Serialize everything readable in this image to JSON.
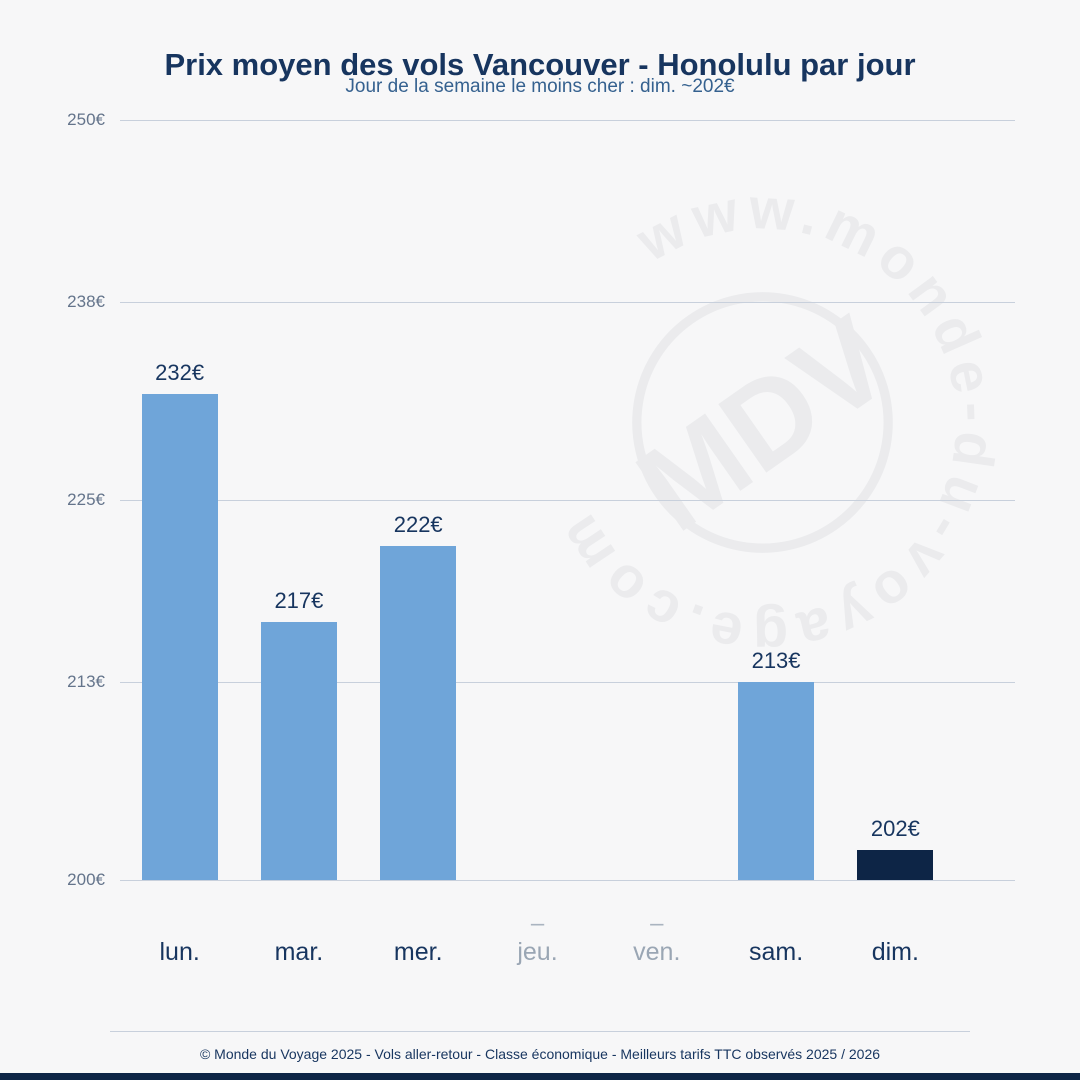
{
  "header": {
    "title": "Prix moyen des vols Vancouver - Honolulu par jour",
    "subtitle": "Jour de la semaine le moins cher : dim. ~202€"
  },
  "chart_data": {
    "type": "bar",
    "title": "Prix moyen des vols Vancouver - Honolulu par jour",
    "categories": [
      "lun.",
      "mar.",
      "mer.",
      "jeu.",
      "ven.",
      "sam.",
      "dim."
    ],
    "values": [
      232,
      217,
      222,
      null,
      null,
      213,
      202
    ],
    "value_labels": [
      "232€",
      "217€",
      "222€",
      "–",
      "–",
      "213€",
      "202€"
    ],
    "missing_indices": [
      3,
      4
    ],
    "highlight_index": 6,
    "ylim": [
      200,
      250
    ],
    "yticks": [
      250,
      238,
      225,
      213,
      200
    ],
    "ytick_labels": [
      "250€",
      "238€",
      "225€",
      "213€",
      "200€"
    ],
    "legend": "none",
    "grid": "horizontal",
    "colors": {
      "bar": "#6fa5d9",
      "highlight_bar": "#0d2546",
      "value_label": "#17355f",
      "day_label": "#17355f",
      "muted_day_label": "#9aa6b4",
      "gridline": "#c8d0dc",
      "ytick": "#64748b"
    }
  },
  "watermark": {
    "ring_text": "www.monde-du-voyage.com",
    "center_text": "MDV"
  },
  "footer": {
    "text": "© Monde du Voyage 2025 - Vols aller-retour - Classe économique - Meilleurs tarifs TTC observés 2025 / 2026"
  }
}
